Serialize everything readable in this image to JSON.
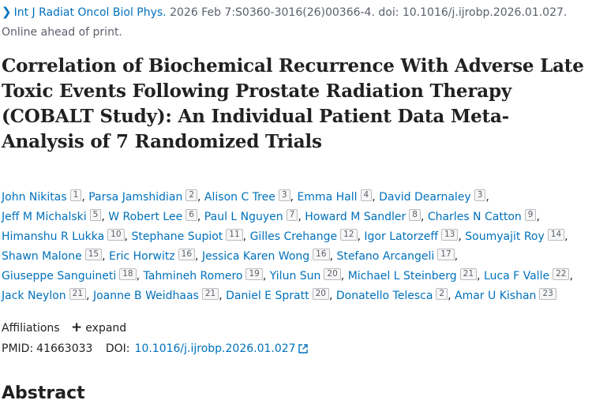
{
  "citation": {
    "journal": "Int J Radiat Oncol Biol Phys.",
    "details": " 2026 Feb 7:S0360-3016(26)00366-4. doi: 10.1016/j.ijrobp.2026.01.027.",
    "status": "Online ahead of print."
  },
  "title": "Correlation of Biochemical Recurrence With Adverse Late Toxic Events Following Prostate Radiation Therapy (COBALT Study): An Individual Patient Data Meta-Analysis of 7 Randomized Trials",
  "authors": [
    [
      {
        "name": "John Nikitas",
        "aff": "1"
      },
      {
        "name": "Parsa Jamshidian",
        "aff": "2"
      },
      {
        "name": "Alison C Tree",
        "aff": "3"
      },
      {
        "name": "Emma Hall",
        "aff": "4"
      },
      {
        "name": "David Dearnaley",
        "aff": "3"
      }
    ],
    [
      {
        "name": "Jeff M Michalski",
        "aff": "5"
      },
      {
        "name": "W Robert Lee",
        "aff": "6"
      },
      {
        "name": "Paul L Nguyen",
        "aff": "7"
      },
      {
        "name": "Howard M Sandler",
        "aff": "8"
      },
      {
        "name": "Charles N Catton",
        "aff": "9"
      }
    ],
    [
      {
        "name": "Himanshu R Lukka",
        "aff": "10"
      },
      {
        "name": "Stephane Supiot",
        "aff": "11"
      },
      {
        "name": "Gilles Crehange",
        "aff": "12"
      },
      {
        "name": "Igor Latorzeff",
        "aff": "13"
      },
      {
        "name": "Soumyajit Roy",
        "aff": "14"
      }
    ],
    [
      {
        "name": "Shawn Malone",
        "aff": "15"
      },
      {
        "name": "Eric Horwitz",
        "aff": "16"
      },
      {
        "name": "Jessica Karen Wong",
        "aff": "16"
      },
      {
        "name": "Stefano Arcangeli",
        "aff": "17"
      }
    ],
    [
      {
        "name": "Giuseppe Sanguineti",
        "aff": "18"
      },
      {
        "name": "Tahmineh Romero",
        "aff": "19"
      },
      {
        "name": "Yilun Sun",
        "aff": "20"
      },
      {
        "name": "Michael L Steinberg",
        "aff": "21"
      },
      {
        "name": "Luca F Valle",
        "aff": "22"
      }
    ],
    [
      {
        "name": "Jack Neylon",
        "aff": "21"
      },
      {
        "name": "Joanne B Weidhaas",
        "aff": "21"
      },
      {
        "name": "Daniel E Spratt",
        "aff": "20"
      },
      {
        "name": "Donatello Telesca",
        "aff": "2"
      },
      {
        "name": "Amar U Kishan",
        "aff": "23"
      }
    ]
  ],
  "affiliations": {
    "label": "Affiliations",
    "expand_label": "expand"
  },
  "ids": {
    "pmid_label": "PMID:",
    "pmid_value": "41663033",
    "doi_label": "DOI:",
    "doi_value": "10.1016/j.ijrobp.2026.01.027"
  },
  "abstract_heading": "Abstract",
  "colors": {
    "link": "#0071bc",
    "text": "#212121",
    "muted": "#5b616b"
  },
  "icons": {
    "journal_chevron": "chevron-right-icon",
    "expand": "plus-icon",
    "doi_external": "external-link-icon"
  }
}
